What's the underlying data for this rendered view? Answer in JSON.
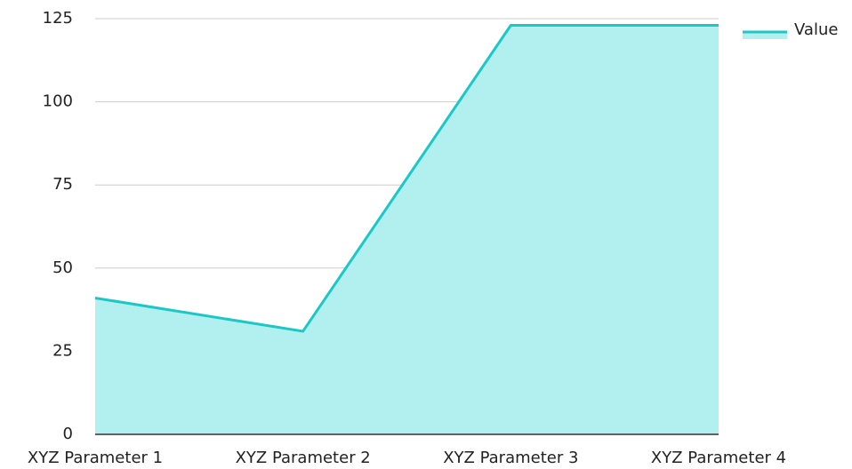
{
  "chart_data": {
    "type": "area",
    "categories": [
      "XYZ Parameter 1",
      "XYZ Parameter 2",
      "XYZ Parameter 3",
      "XYZ Parameter 4"
    ],
    "series": [
      {
        "name": "Value",
        "color": "#1cc7c7",
        "fill": "#b2efef",
        "values": [
          41,
          31,
          123,
          123
        ]
      }
    ],
    "ylim": [
      0,
      125
    ],
    "yticks": [
      0,
      25,
      50,
      75,
      100,
      125
    ],
    "grid": true,
    "legend": "top-right"
  }
}
